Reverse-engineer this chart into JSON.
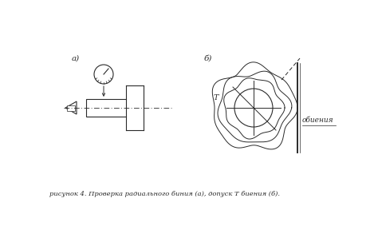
{
  "bg_color": "#ffffff",
  "line_color": "#2a2a2a",
  "caption": "рисунок 4. Проверка радиального биния (а), допуск Т биения (б).",
  "label_a": "а)",
  "label_b": "б)",
  "label_T": "Т",
  "label_obv": "обиения"
}
